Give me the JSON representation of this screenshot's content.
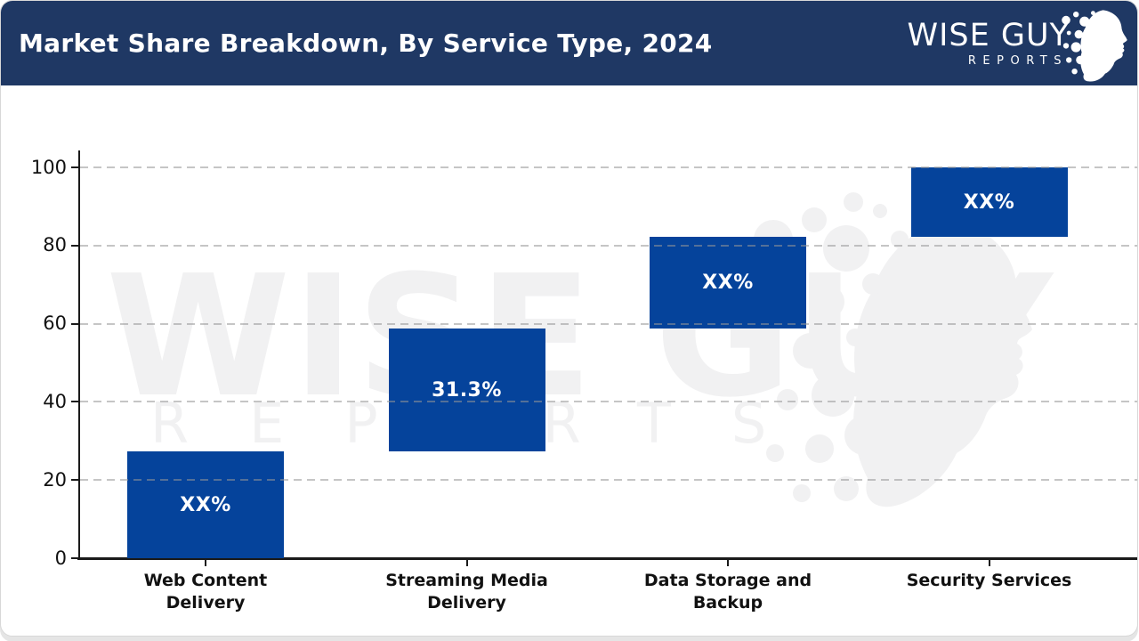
{
  "header": {
    "title": "Market Share Breakdown, By Service Type, 2024"
  },
  "logo": {
    "name": "WISE GUY",
    "sub": "REPORTS"
  },
  "watermark": {
    "name": "WISE GUY",
    "sub": "REPORTS"
  },
  "colors": {
    "header_bg": "#1F3864",
    "bar_blue": "#05439B",
    "axis_black": "#1a1a1a",
    "watermark_gray": "#f1f1f2",
    "grid_gray": "#d6d6d6",
    "label_white": "#ffffff"
  },
  "chart_data": {
    "type": "bar",
    "subtype": "waterfall",
    "title": "Market Share Breakdown, By Service Type, 2024",
    "categories": [
      "Web Content Delivery",
      "Streaming Media Delivery",
      "Data Storage and Backup",
      "Security Services"
    ],
    "categories_display": [
      "Web Content\nDelivery",
      "Streaming Media\nDelivery",
      "Data Storage and\nBackup",
      "Security Services"
    ],
    "segments": [
      {
        "category": "Web Content Delivery",
        "start": 0,
        "end": 27.3,
        "label": "XX%"
      },
      {
        "category": "Streaming Media Delivery",
        "start": 27.3,
        "end": 58.7,
        "label": "31.3%",
        "value": 31.3
      },
      {
        "category": "Data Storage and Backup",
        "start": 58.7,
        "end": 82.2,
        "label": "XX%"
      },
      {
        "category": "Security Services",
        "start": 82.2,
        "end": 100,
        "label": "XX%"
      }
    ],
    "ylabel": "",
    "xlabel": "",
    "ylim": [
      0,
      100
    ],
    "yticks": [
      0,
      20,
      40,
      60,
      80,
      100
    ],
    "grid": "horizontal-dashed",
    "legend": "none"
  }
}
